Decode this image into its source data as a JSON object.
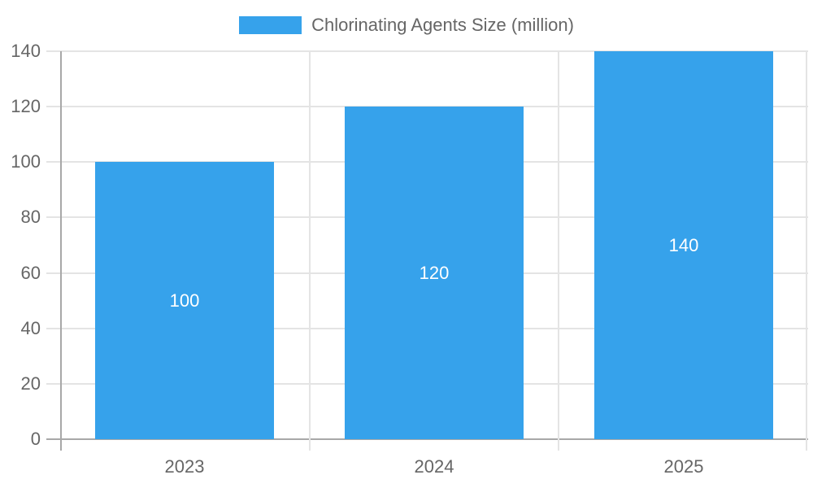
{
  "legend": {
    "label": "Chlorinating Agents Size (million)"
  },
  "chart_data": {
    "type": "bar",
    "title": "",
    "xlabel": "",
    "ylabel": "",
    "categories": [
      "2023",
      "2024",
      "2025"
    ],
    "series": [
      {
        "name": "Chlorinating Agents Size (million)",
        "values": [
          100,
          120,
          140
        ],
        "data_labels": [
          "100",
          "120",
          "140"
        ],
        "color": "#36a2eb"
      }
    ],
    "ylim": [
      0,
      140
    ],
    "yticks": [
      0,
      20,
      40,
      60,
      80,
      100,
      120,
      140
    ],
    "ytick_labels": [
      "0",
      "20",
      "40",
      "60",
      "80",
      "100",
      "120",
      "140"
    ],
    "grid": "on",
    "legend_position": "top-center",
    "data_label_color": "#ffffff"
  },
  "colors": {
    "bar": "#36a2eb",
    "axis_text": "#666666",
    "gridline": "#e4e4e4",
    "zero_line": "#a8a8a8",
    "background": "#ffffff"
  }
}
